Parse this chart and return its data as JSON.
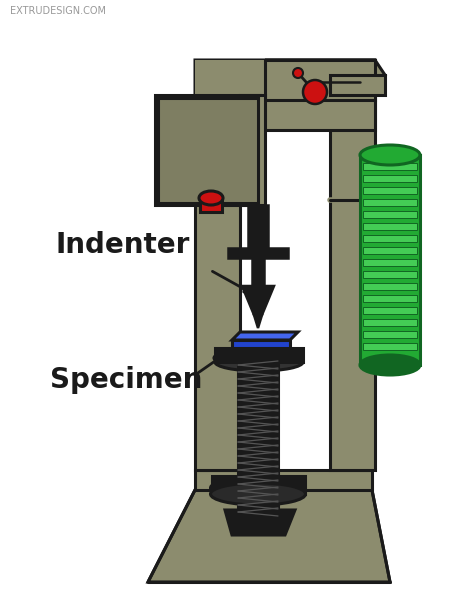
{
  "background_color": "#ffffff",
  "body_color": "#8c8c6e",
  "body_dark": "#7a7a5e",
  "outline_color": "#1a1a1a",
  "black_color": "#1a1a1a",
  "dark_part": "#2a2a2a",
  "red_color": "#cc1111",
  "green_color": "#22aa33",
  "green_dark": "#116622",
  "green_rib": "#44cc55",
  "blue_color": "#2244cc",
  "blue_light": "#4466ee",
  "watermark": "EXTRUDESIGN.COM",
  "label_indenter": "Indenter",
  "label_specimen": "Specimen",
  "label_fontsize": 20,
  "watermark_fontsize": 7
}
